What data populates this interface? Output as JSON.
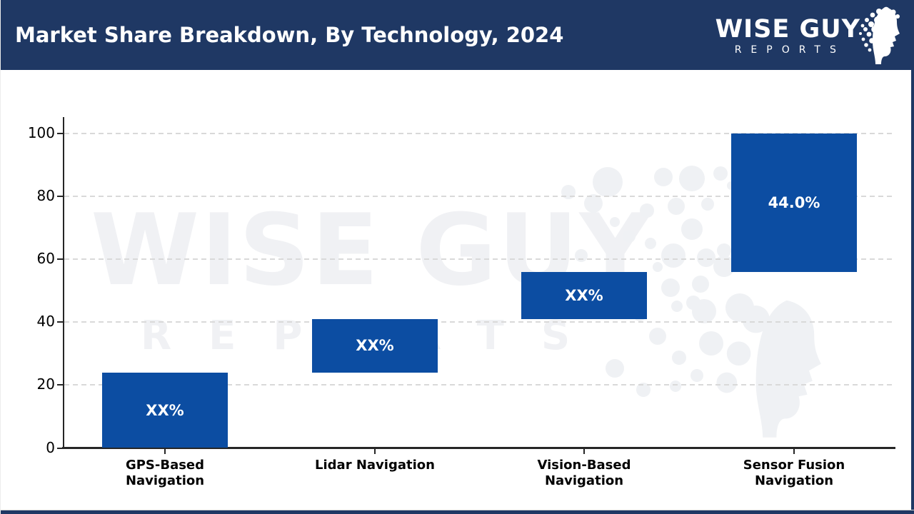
{
  "header": {
    "title": "Market Share Breakdown, By Technology, 2024",
    "logo": {
      "line1": "WISE GUY",
      "line2": "REPORTS"
    }
  },
  "watermark": {
    "line1": "WISE GUY",
    "line2": "REPORTS"
  },
  "colors": {
    "header_bg": "#1F3864",
    "bar_fill": "#0C4DA2",
    "bar_label_text": "#FFFFFF",
    "axis": "#262626",
    "tick_label": "#000000",
    "gridline": "#D9D9D9",
    "watermark": "#F0F1F4",
    "background": "#FFFFFF"
  },
  "chart_data": {
    "type": "bar",
    "subtype": "waterfall-floating-bars",
    "title": "Market Share Breakdown, By Technology, 2024",
    "xlabel": "",
    "ylabel": "",
    "ylim": [
      0,
      105
    ],
    "yticks": [
      0,
      20,
      40,
      60,
      80,
      100
    ],
    "grid": "horizontal dashed",
    "legend": "none",
    "categories": [
      "GPS-Based Navigation",
      "Lidar Navigation",
      "Vision-Based Navigation",
      "Sensor Fusion Navigation"
    ],
    "category_tick_lines": [
      [
        "GPS-Based",
        "Navigation"
      ],
      [
        "Lidar Navigation"
      ],
      [
        "Vision-Based",
        "Navigation"
      ],
      [
        "Sensor Fusion",
        "Navigation"
      ]
    ],
    "segments": [
      {
        "category": "GPS-Based Navigation",
        "start": 0,
        "end": 24,
        "value": 24,
        "label": "XX%"
      },
      {
        "category": "Lidar Navigation",
        "start": 24,
        "end": 41,
        "value": 17,
        "label": "XX%"
      },
      {
        "category": "Vision-Based Navigation",
        "start": 41,
        "end": 56,
        "value": 15,
        "label": "XX%"
      },
      {
        "category": "Sensor Fusion Navigation",
        "start": 56,
        "end": 100,
        "value": 44,
        "label": "44.0%"
      }
    ]
  }
}
